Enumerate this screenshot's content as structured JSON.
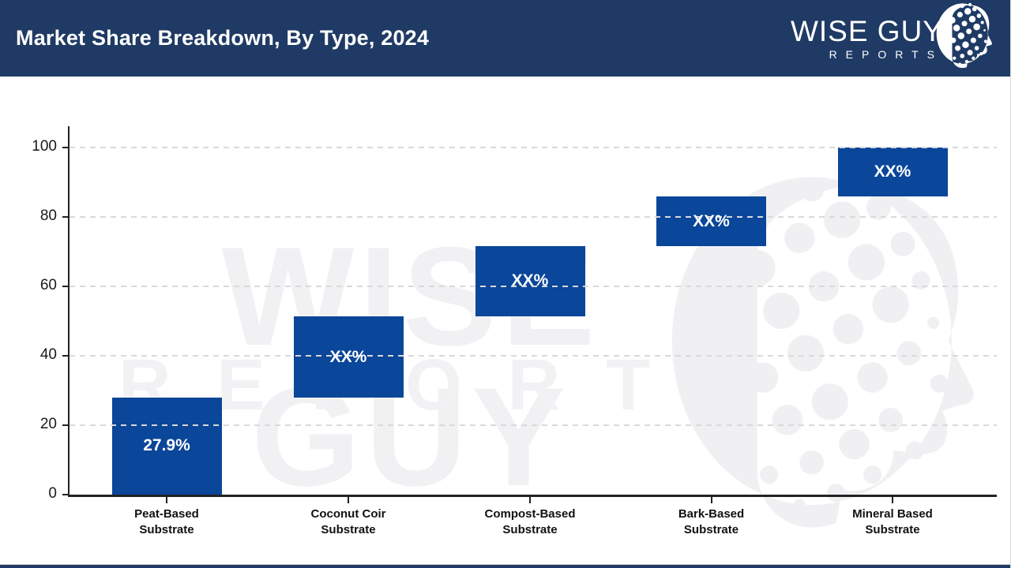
{
  "header": {
    "title": "Market Share Breakdown, By Type, 2024",
    "bg_color": "#1F3A64",
    "logo": {
      "name": "WISE GUY",
      "tagline": "REPORTS"
    }
  },
  "watermark": {
    "line1": "WISE GUY",
    "line2": "REPORTS"
  },
  "chart_data": {
    "type": "bar",
    "subtype": "waterfall",
    "title": "Market Share Breakdown, By Type, 2024",
    "xlabel": "",
    "ylabel": "",
    "ylim": [
      0,
      100
    ],
    "yticks": [
      0,
      20,
      40,
      60,
      80,
      100
    ],
    "grid": "dashed-horizontal",
    "legend": "none",
    "bar_color": "#0A4699",
    "label_color": "#ffffff",
    "categories": [
      "Peat-Based Substrate",
      "Coconut Coir Substrate",
      "Compost-Based Substrate",
      "Bark-Based Substrate",
      "Mineral Based Substrate"
    ],
    "category_lines": [
      [
        "Peat-Based",
        "Substrate"
      ],
      [
        "Coconut Coir",
        "Substrate"
      ],
      [
        "Compost-Based",
        "Substrate"
      ],
      [
        "Bark-Based",
        "Substrate"
      ],
      [
        "Mineral Based",
        "Substrate"
      ]
    ],
    "segments": [
      {
        "label": "27.9%",
        "start": 0,
        "end": 27.9
      },
      {
        "label": "XX%",
        "start": 27.9,
        "end": 51.4
      },
      {
        "label": "XX%",
        "start": 51.4,
        "end": 71.6
      },
      {
        "label": "XX%",
        "start": 71.6,
        "end": 86.0
      },
      {
        "label": "XX%",
        "start": 86.0,
        "end": 100.0
      }
    ]
  }
}
